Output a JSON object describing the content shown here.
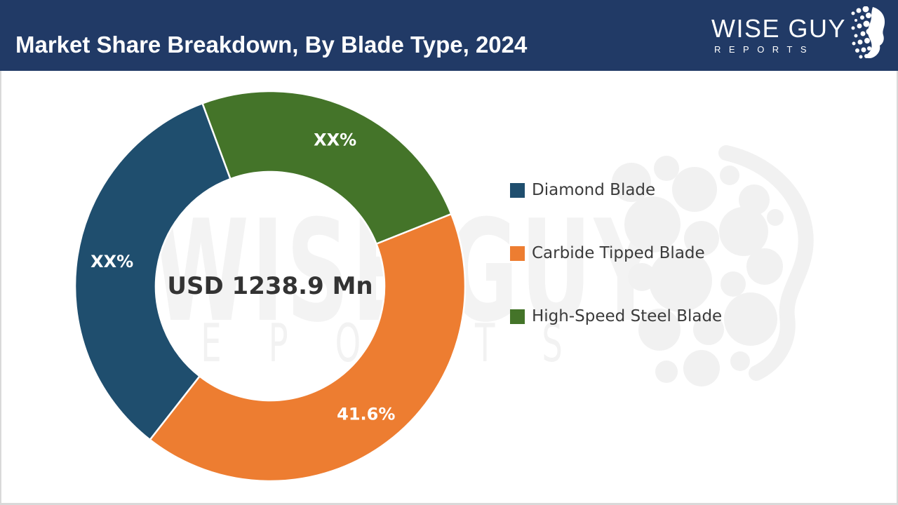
{
  "header": {
    "title": "Market Share Breakdown, By Blade Type, 2024",
    "bg_color": "#213a66",
    "logo": {
      "wordmark": "WISE GUY",
      "subtitle": "REPORTS"
    }
  },
  "chart_data": {
    "type": "pie",
    "subtype": "donut",
    "title": "Market Share Breakdown, By Blade Type, 2024",
    "center_label": "USD 1238.9 Mn",
    "start_angle_deg": 110.3,
    "direction": "counterclockwise",
    "donut_hole_ratio": 0.585,
    "legend_position": "right",
    "segments": [
      {
        "label": "Diamond Blade",
        "value_pct": 33.8,
        "display_label": "XX%",
        "color": "#1f4e6e"
      },
      {
        "label": "Carbide Tipped Blade",
        "value_pct": 41.6,
        "display_label": "41.6%",
        "color": "#ed7d31"
      },
      {
        "label": "High-Speed Steel Blade",
        "value_pct": 24.6,
        "display_label": "XX%",
        "color": "#447429"
      }
    ]
  },
  "watermark": {
    "wordmark": "WISE GUY",
    "subtitle": "REPORTS"
  },
  "colors": {
    "header_bg": "#213a66",
    "page_bg": "#ffffff",
    "border": "#d9d9d9",
    "legend_text": "#3b3b3b",
    "center_text": "#333333",
    "watermark": "#f3f3f3"
  }
}
